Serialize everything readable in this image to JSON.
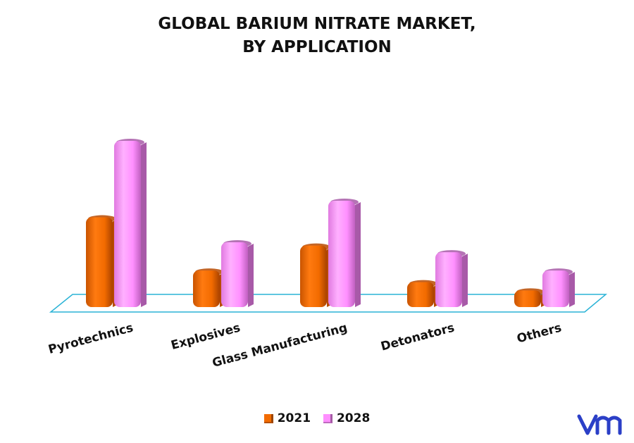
{
  "title_lines": [
    "GLOBAL BARIUM NITRATE MARKET,",
    "BY APPLICATION"
  ],
  "logo_text": "vm",
  "colors": {
    "series_2021": "#f26b00",
    "series_2021_dark": "#b84a00",
    "series_2028": "#ff8fff",
    "series_2028_dark": "#a85aa8",
    "floor_stroke": "#2ab3d6"
  },
  "chart_data": {
    "type": "bar",
    "title": "GLOBAL BARIUM NITRATE MARKET, BY APPLICATION",
    "categories": [
      "Pyrotechnics",
      "Explosives",
      "Glass Manufacturing",
      "Detonators",
      "Others"
    ],
    "series": [
      {
        "name": "2021",
        "values": [
          0.54,
          0.22,
          0.37,
          0.15,
          0.1
        ]
      },
      {
        "name": "2028",
        "values": [
          1.0,
          0.39,
          0.64,
          0.33,
          0.22
        ]
      }
    ],
    "ylim": [
      0,
      1
    ],
    "grid": false,
    "legend_position": "bottom"
  }
}
